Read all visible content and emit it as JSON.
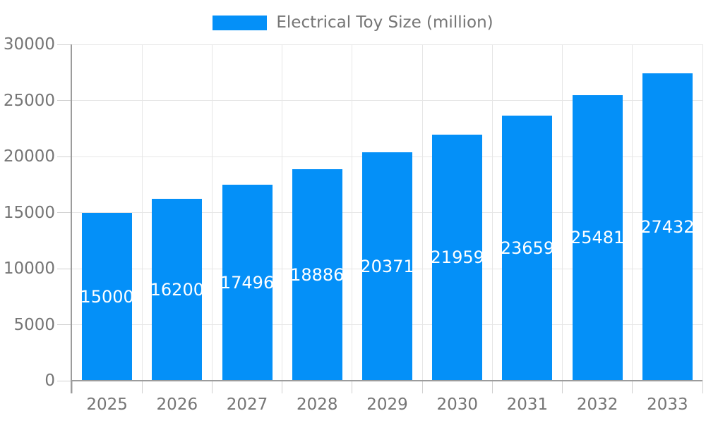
{
  "chart_data": {
    "type": "bar",
    "title": "Electrical Toy Size (million)",
    "legend": {
      "label": "Electrical Toy Size (million)",
      "position": "top"
    },
    "categories": [
      "2025",
      "2026",
      "2027",
      "2028",
      "2029",
      "2030",
      "2031",
      "2032",
      "2033"
    ],
    "series": [
      {
        "name": "Electrical Toy Size (million)",
        "values": [
          15000,
          16200,
          17496,
          18886,
          20371,
          21959,
          23659,
          25481,
          27432
        ]
      }
    ],
    "value_labels_shown": true,
    "xlabel": "",
    "ylabel": "",
    "ylim": [
      0,
      30000
    ],
    "yticks": [
      0,
      5000,
      10000,
      15000,
      20000,
      25000,
      30000
    ],
    "grid": true,
    "colors": {
      "bar": "#0490f8",
      "bar_value_text": "#ffffff",
      "axis_text": "#757575",
      "legend_text": "#757575",
      "gridline": "#e6e6e6",
      "tick": "#d0d0d0",
      "axis_line": "#9c9c9c",
      "background": "#ffffff"
    }
  }
}
